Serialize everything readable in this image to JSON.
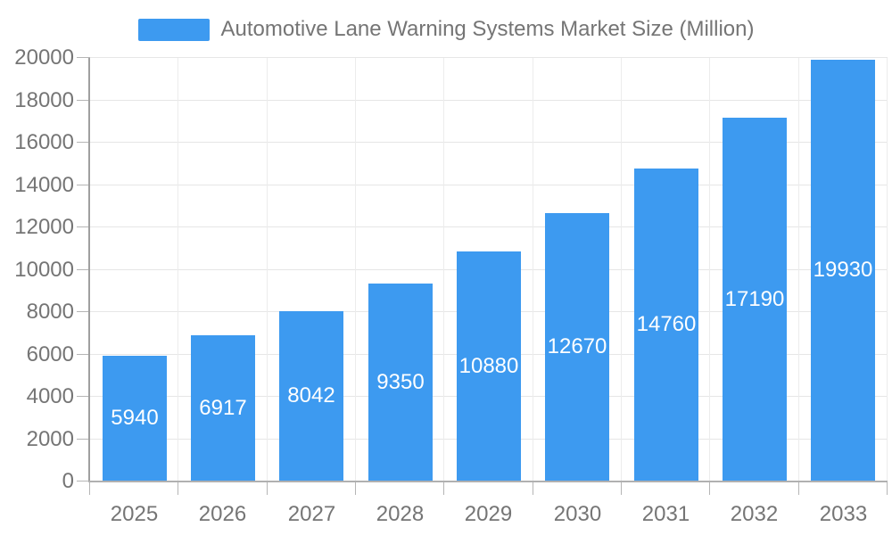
{
  "chart_data": {
    "type": "bar",
    "title": "Automotive Lane Warning Systems Market Size (Million)",
    "xlabel": "",
    "ylabel": "",
    "categories": [
      "2025",
      "2026",
      "2027",
      "2028",
      "2029",
      "2030",
      "2031",
      "2032",
      "2033"
    ],
    "series": [
      {
        "name": "Automotive Lane Warning Systems Market Size (Million)",
        "values": [
          5940,
          6917,
          8042,
          9350,
          10880,
          12670,
          14760,
          17190,
          19930
        ]
      }
    ],
    "value_labels_shown": true,
    "ylim": [
      0,
      20000
    ],
    "y_tick_step": 2000,
    "y_ticks": [
      0,
      2000,
      4000,
      6000,
      8000,
      10000,
      12000,
      14000,
      16000,
      18000,
      20000
    ],
    "grid": true,
    "legend_position": "top-center",
    "colors": {
      "bar": "#3d9af0",
      "bar_value_label": "#ffffff",
      "axis_text": "#757575",
      "legend_text": "#757575",
      "grid_horizontal": "#e6e6e6",
      "grid_vertical": "#ececec",
      "y_axis_line": "#9f9f9f",
      "x_axis_line": "#b0b0b0",
      "tick_mark": "#b5b5b5",
      "background": "#ffffff"
    }
  }
}
